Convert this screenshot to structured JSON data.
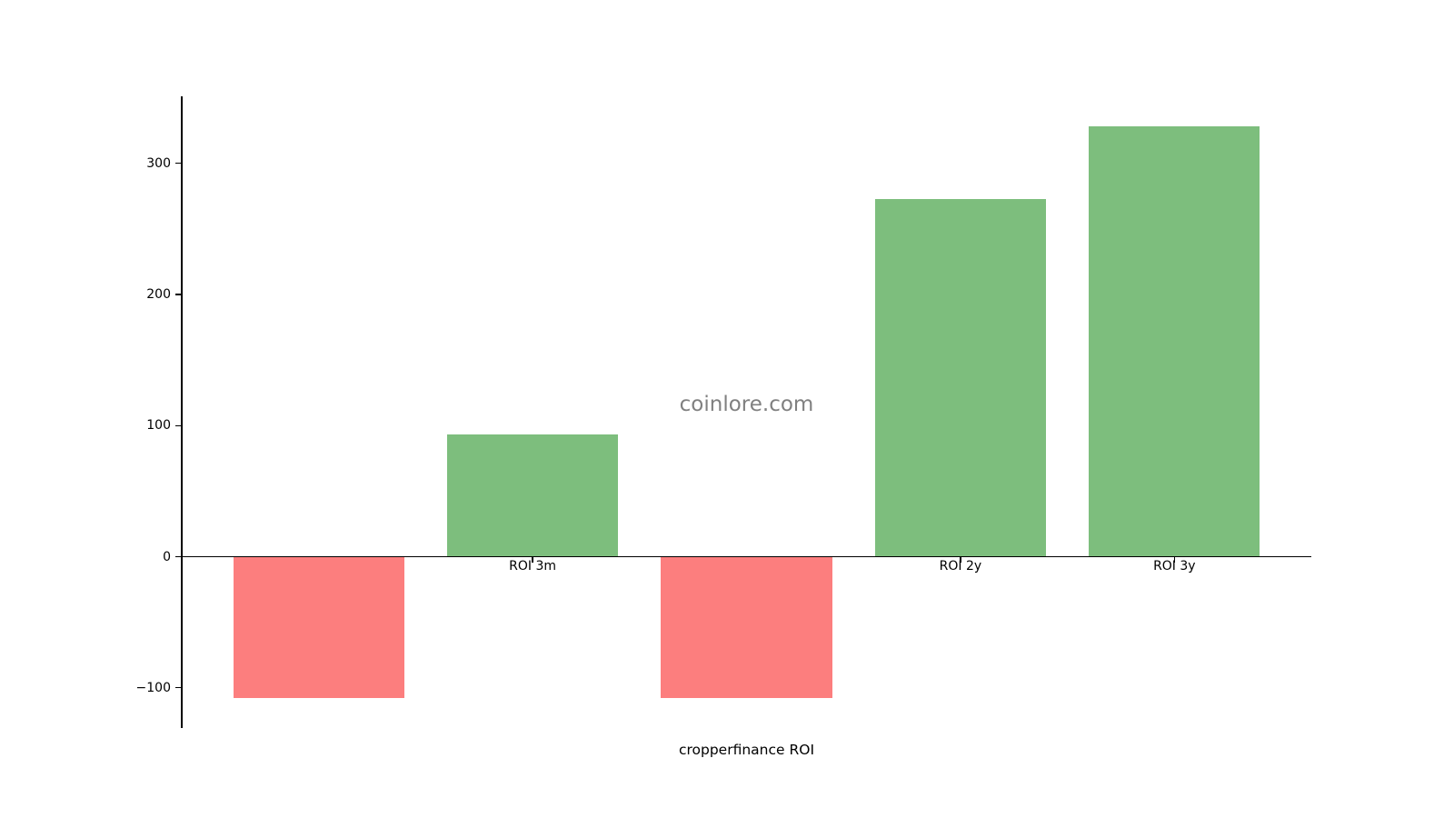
{
  "page": {
    "background": "#ffffff"
  },
  "watermark": {
    "text": "coinlore.com",
    "color": "#808080"
  },
  "chart_data": {
    "type": "bar",
    "title": "cropperfinance ROI",
    "categories": [
      "",
      "ROI 3m",
      "",
      "ROI 2y",
      "ROI 3y"
    ],
    "values": [
      -108,
      93,
      -108,
      273,
      328
    ],
    "positive_color": "#7dbe7d",
    "negative_color": "#fc7e7e",
    "axis_color": "#000000",
    "tick_label_color": "#000000",
    "yticks": [
      300,
      200,
      100,
      0,
      -100
    ],
    "ylim": [
      -130,
      350
    ],
    "xlabel": "",
    "ylabel": "",
    "grid": false,
    "legend": null
  }
}
